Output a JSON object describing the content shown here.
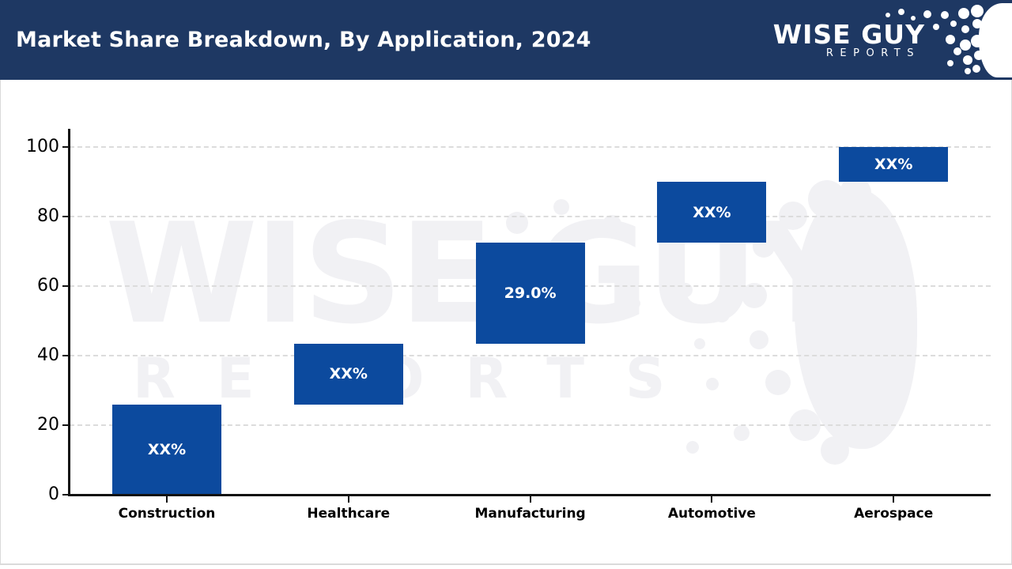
{
  "header": {
    "title": "Market Share Breakdown, By Application, 2024",
    "logo": {
      "brand_top": "WISE GUY",
      "brand_bottom": "REPORTS"
    }
  },
  "watermark": {
    "line1": "WISE GUY",
    "line2": "REPORTS"
  },
  "colors": {
    "header_bg": "#1e3863",
    "bar": "#0c4a9e",
    "bar_label": "#ffffff",
    "gridline": "#dcdcdc",
    "axis": "#111111",
    "watermark": "#f1f1f4"
  },
  "chart_data": {
    "type": "bar",
    "variant": "waterfall",
    "title": "Market Share Breakdown, By Application, 2024",
    "categories": [
      "Construction",
      "Healthcare",
      "Manufacturing",
      "Automotive",
      "Aerospace"
    ],
    "bar_starts": [
      0,
      26,
      43.5,
      72.5,
      90
    ],
    "values": [
      26,
      17.5,
      29,
      17.5,
      10
    ],
    "bar_labels": [
      "XX%",
      "XX%",
      "29.0%",
      "XX%",
      "XX%"
    ],
    "yticks": [
      0,
      20,
      40,
      60,
      80,
      100
    ],
    "ylim": [
      0,
      105
    ],
    "xlabel": "",
    "ylabel": "",
    "grid": "horizontal-dashed",
    "legend": "none",
    "unit": "percent"
  }
}
